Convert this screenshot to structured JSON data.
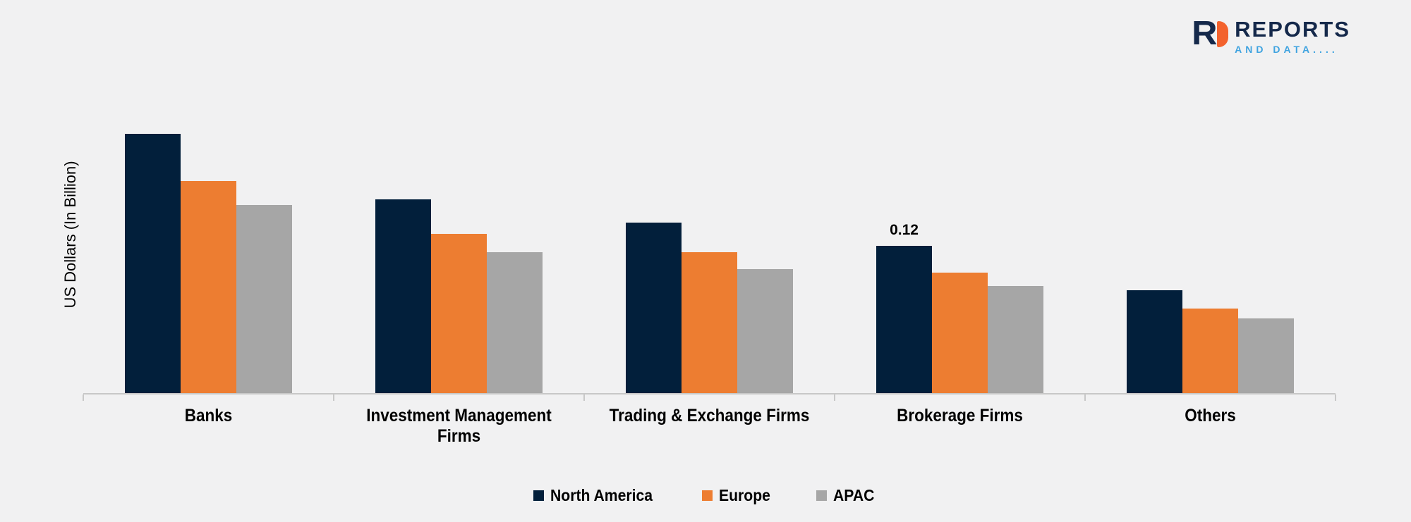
{
  "logo": {
    "title": "REPORTS",
    "subtitle": "AND DATA....",
    "mark_letter": "R",
    "mark_d_icon": "d-half-rounded-block",
    "colors": {
      "navy": "#15294b",
      "orange": "#f3622d",
      "light_blue": "#3fa3e0"
    }
  },
  "colors": {
    "background": "#f1f1f2",
    "axis": "#c8c8c8",
    "north_america": "#021f3b",
    "europe": "#ed7d31",
    "apac": "#a6a6a6"
  },
  "chart_data": {
    "type": "bar",
    "title": "",
    "xlabel": "",
    "ylabel": "US Dollars  (In Billion)",
    "categories": [
      "Banks",
      "Investment Management Firms",
      "Trading & Exchange Firms",
      "Brokerage Firms",
      "Others"
    ],
    "series": [
      {
        "name": "North America",
        "color": "#021f3b",
        "values": [
          0.211,
          0.158,
          0.139,
          0.12,
          0.084
        ]
      },
      {
        "name": "Europe",
        "color": "#ed7d31",
        "values": [
          0.173,
          0.13,
          0.115,
          0.098,
          0.069
        ]
      },
      {
        "name": "APAC",
        "color": "#a6a6a6",
        "values": [
          0.153,
          0.115,
          0.101,
          0.087,
          0.061
        ]
      }
    ],
    "data_labels": [
      {
        "category": "Brokerage Firms",
        "series": "North America",
        "text": "0.12"
      }
    ],
    "ylim": [
      0,
      0.264
    ],
    "grid": false,
    "y_axis_ticks_visible": false,
    "legend_position": "bottom"
  }
}
